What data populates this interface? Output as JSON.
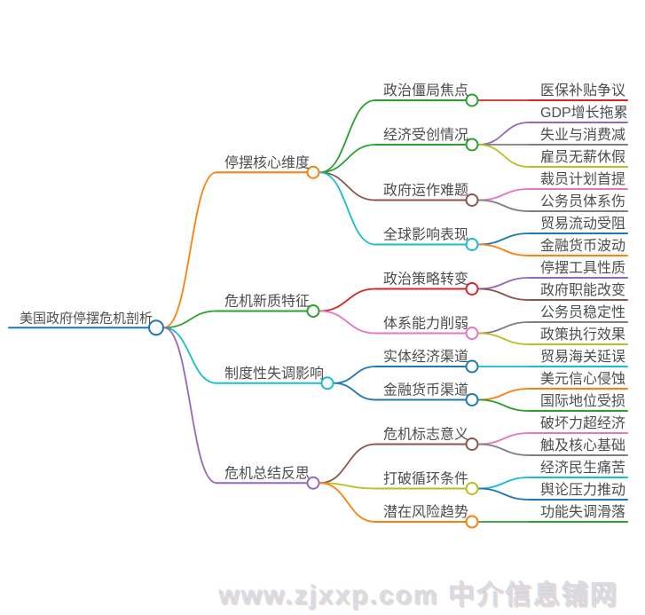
{
  "title": "美国政府停摆危机剖析",
  "watermark": {
    "text": "www.zjxxp.com 中介信息铺网"
  },
  "palette": {
    "blue": "#1f77b4",
    "orange": "#ff7f0e",
    "green": "#2ca02c",
    "red": "#d62728",
    "purple": "#9467bd",
    "brown": "#8c564b",
    "pink": "#e377c2",
    "gray": "#7f7f7f",
    "olive": "#bcbd22",
    "cyan": "#17becf",
    "text": "#4d4d4d",
    "background": "#ffffff"
  },
  "chart_data": {
    "type": "mindmap",
    "direction": "left-to-right",
    "root": "美国政府停摆危机剖析",
    "branches": [
      {
        "branch": "停摆核心维度",
        "topics": [
          {
            "topic": "政治僵局焦点",
            "details": [
              "医保补贴争议"
            ]
          },
          {
            "topic": "经济受创情况",
            "details": [
              "GDP增长拖累",
              "失业与消费减",
              "雇员无薪休假"
            ]
          },
          {
            "topic": "政府运作难题",
            "details": [
              "裁员计划首提",
              "公务员体系伤"
            ]
          },
          {
            "topic": "全球影响表现",
            "details": [
              "贸易流动受阻",
              "金融货币波动"
            ]
          }
        ]
      },
      {
        "branch": "危机新质特征",
        "topics": [
          {
            "topic": "政治策略转变",
            "details": [
              "停摆工具性质",
              "政府职能改变"
            ]
          },
          {
            "topic": "体系能力削弱",
            "details": [
              "公务员稳定性",
              "政策执行效果"
            ]
          }
        ]
      },
      {
        "branch": "制度性失调影响",
        "topics": [
          {
            "topic": "实体经济渠道",
            "details": [
              "贸易海关延误"
            ]
          },
          {
            "topic": "金融货币渠道",
            "details": [
              "美元信心侵蚀",
              "国际地位受损"
            ]
          }
        ]
      },
      {
        "branch": "危机总结反思",
        "topics": [
          {
            "topic": "危机标志意义",
            "details": [
              "破坏力超经济",
              "触及核心基础"
            ]
          },
          {
            "topic": "打破循环条件",
            "details": [
              "经济民生痛苦",
              "舆论压力推动"
            ]
          },
          {
            "topic": "潜在风险趋势",
            "details": [
              "功能失调滑落"
            ]
          }
        ]
      }
    ]
  },
  "tree": {
    "id": "root",
    "label": "美国政府停摆危机剖析",
    "color": "#1f77b4",
    "children": [
      {
        "id": "core-dimensions",
        "label": "停摆核心维度",
        "color": "#ff7f0e",
        "children": [
          {
            "id": "political-deadlock-focus",
            "label": "政治僵局焦点",
            "color": "#2ca02c",
            "children": [
              {
                "id": "healthcare-subsidy-dispute",
                "label": "医保补贴争议",
                "color": "#d62728"
              }
            ]
          },
          {
            "id": "economic-damage",
            "label": "经济受创情况",
            "color": "#2ca02c",
            "children": [
              {
                "id": "gdp-growth-drag",
                "label": "GDP增长拖累",
                "color": "#9467bd"
              },
              {
                "id": "unemployment-consumption-drop",
                "label": "失业与消费减",
                "color": "#7f7f7f"
              },
              {
                "id": "employee-unpaid-furlough",
                "label": "雇员无薪休假",
                "color": "#bcbd22"
              }
            ]
          },
          {
            "id": "government-operation-problems",
            "label": "政府运作难题",
            "color": "#8c564b",
            "children": [
              {
                "id": "layoff-plan-first-mention",
                "label": "裁员计划首提",
                "color": "#e377c2"
              },
              {
                "id": "civil-service-system-hurt",
                "label": "公务员体系伤",
                "color": "#7f7f7f"
              }
            ]
          },
          {
            "id": "global-impact",
            "label": "全球影响表现",
            "color": "#17becf",
            "children": [
              {
                "id": "trade-flow-blocked",
                "label": "贸易流动受阻",
                "color": "#1f77b4"
              },
              {
                "id": "financial-currency-volatility",
                "label": "金融货币波动",
                "color": "#ff7f0e"
              }
            ]
          }
        ]
      },
      {
        "id": "new-crisis-traits",
        "label": "危机新质特征",
        "color": "#2ca02c",
        "children": [
          {
            "id": "political-strategy-shift",
            "label": "政治策略转变",
            "color": "#d62728",
            "children": [
              {
                "id": "shutdown-tool-nature",
                "label": "停摆工具性质",
                "color": "#9467bd"
              },
              {
                "id": "government-function-change",
                "label": "政府职能改变",
                "color": "#8c564b"
              }
            ]
          },
          {
            "id": "system-capacity-weakening",
            "label": "体系能力削弱",
            "color": "#e377c2",
            "children": [
              {
                "id": "civil-servant-stability",
                "label": "公务员稳定性",
                "color": "#7f7f7f"
              },
              {
                "id": "policy-execution-effect",
                "label": "政策执行效果",
                "color": "#bcbd22"
              }
            ]
          }
        ]
      },
      {
        "id": "institutional-dysfunction-impact",
        "label": "制度性失调影响",
        "color": "#17becf",
        "children": [
          {
            "id": "real-economy-channel",
            "label": "实体经济渠道",
            "color": "#1f77b4",
            "children": [
              {
                "id": "trade-customs-delay",
                "label": "贸易海关延误",
                "color": "#17becf"
              }
            ]
          },
          {
            "id": "monetary-channel",
            "label": "金融货币渠道",
            "color": "#1f77b4",
            "children": [
              {
                "id": "dollar-confidence-erosion",
                "label": "美元信心侵蚀",
                "color": "#ff7f0e"
              },
              {
                "id": "international-status-damage",
                "label": "国际地位受损",
                "color": "#2ca02c"
              }
            ]
          }
        ]
      },
      {
        "id": "crisis-reflection",
        "label": "危机总结反思",
        "color": "#9467bd",
        "children": [
          {
            "id": "crisis-significance",
            "label": "危机标志意义",
            "color": "#8c564b",
            "children": [
              {
                "id": "destructive-power-beyond-economy",
                "label": "破坏力超经济",
                "color": "#e377c2"
              },
              {
                "id": "touching-core-foundation",
                "label": "触及核心基础",
                "color": "#7f7f7f"
              }
            ]
          },
          {
            "id": "cycle-breaking-conditions",
            "label": "打破循环条件",
            "color": "#bcbd22",
            "children": [
              {
                "id": "economic-livelihood-pain",
                "label": "经济民生痛苦",
                "color": "#17becf"
              },
              {
                "id": "public-opinion-pressure",
                "label": "舆论压力推动",
                "color": "#1f77b4"
              }
            ]
          },
          {
            "id": "potential-risk-trend",
            "label": "潜在风险趋势",
            "color": "#ff7f0e",
            "children": [
              {
                "id": "functional-decline-slide",
                "label": "功能失调滑落",
                "color": "#2ca02c"
              }
            ]
          }
        ]
      }
    ]
  }
}
